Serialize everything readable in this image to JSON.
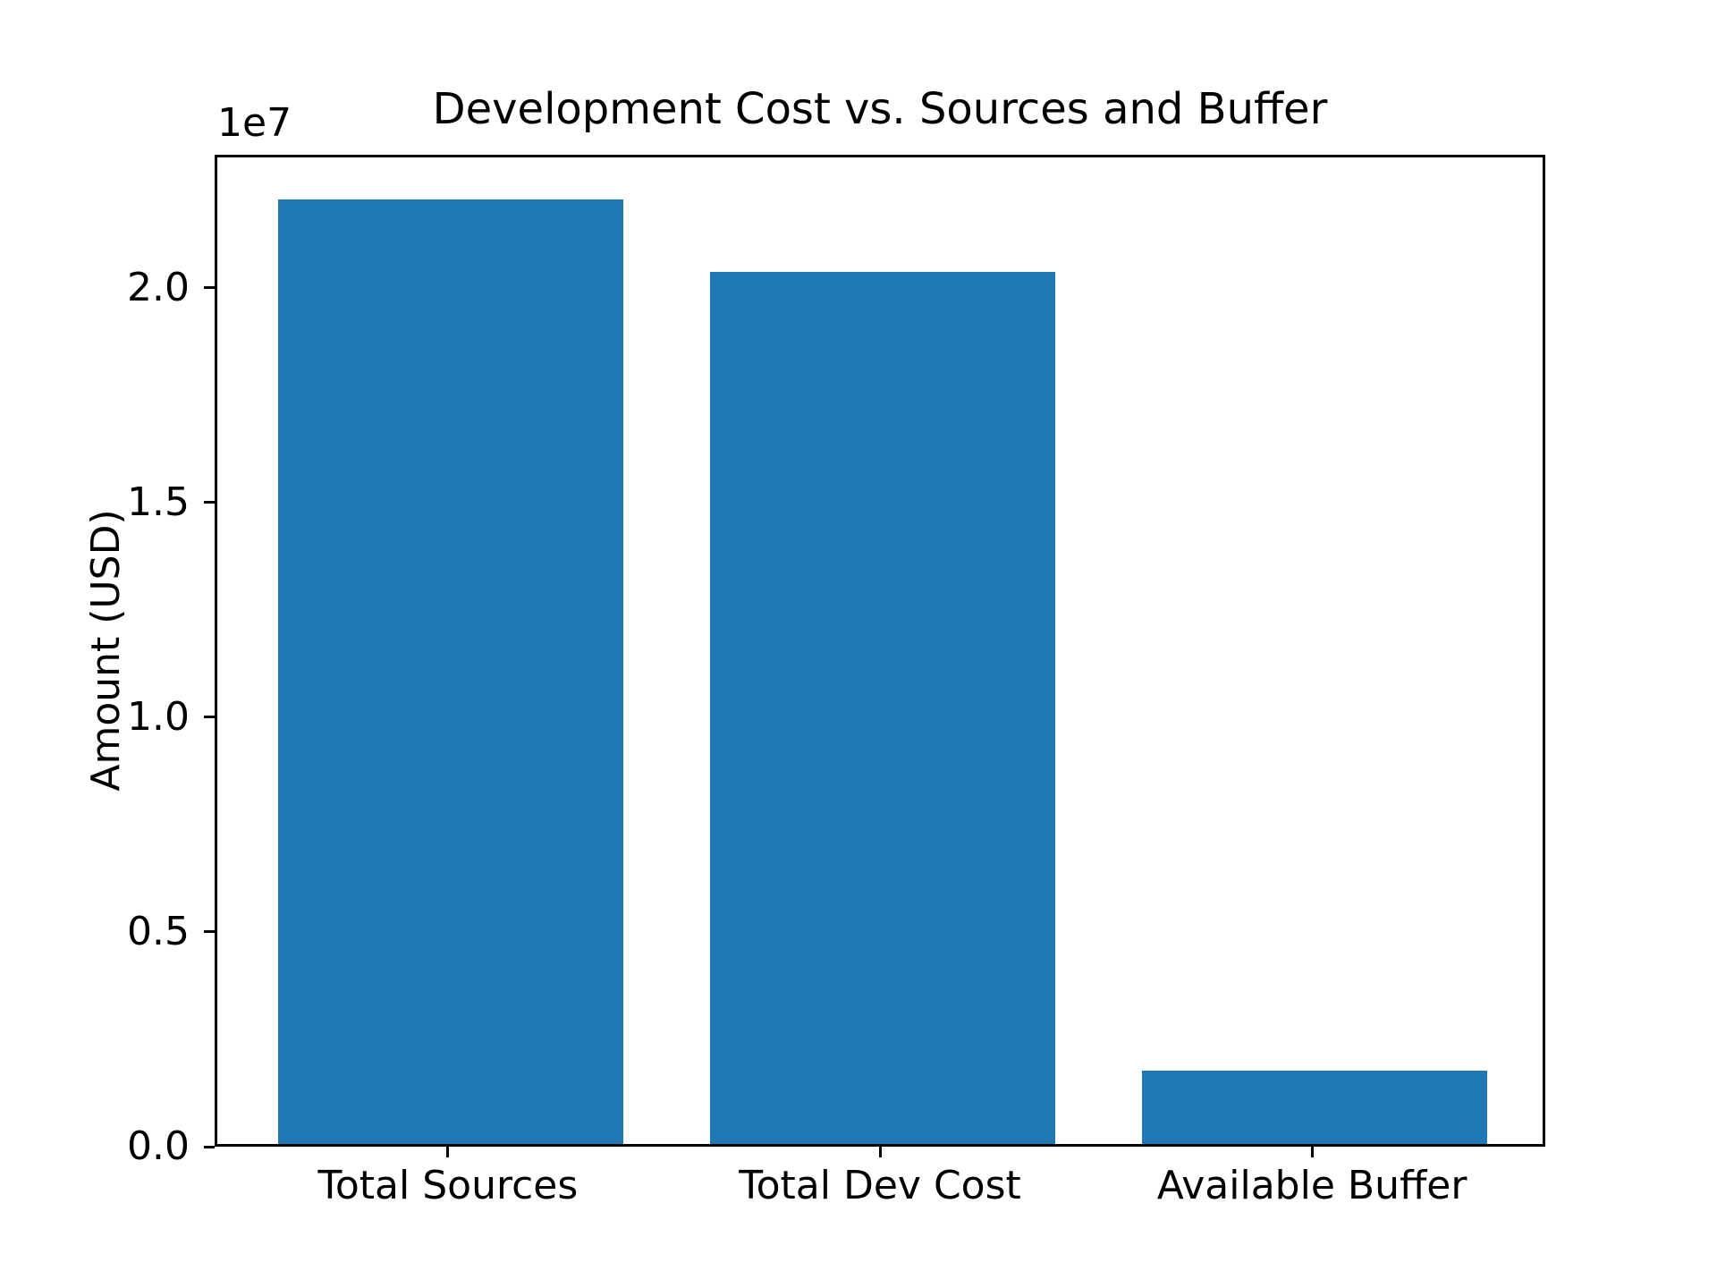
{
  "chart_data": {
    "type": "bar",
    "title": "Development Cost vs. Sources and Buffer",
    "categories": [
      "Total Sources",
      "Total Dev Cost",
      "Available Buffer"
    ],
    "values": [
      22000000,
      20300000,
      1700000
    ],
    "xlabel": "",
    "ylabel": "Amount (USD)",
    "ylim": [
      0,
      23100000
    ],
    "yticks": {
      "values": [
        0,
        5000000,
        10000000,
        15000000,
        20000000
      ],
      "labels": [
        "0.0",
        "0.5",
        "1.0",
        "1.5",
        "2.0"
      ]
    },
    "y_offset_label": "1e7",
    "grid": false,
    "legend": null,
    "colors": {
      "bar": "#1f77b4",
      "text": "#000000",
      "background": "#ffffff"
    }
  }
}
